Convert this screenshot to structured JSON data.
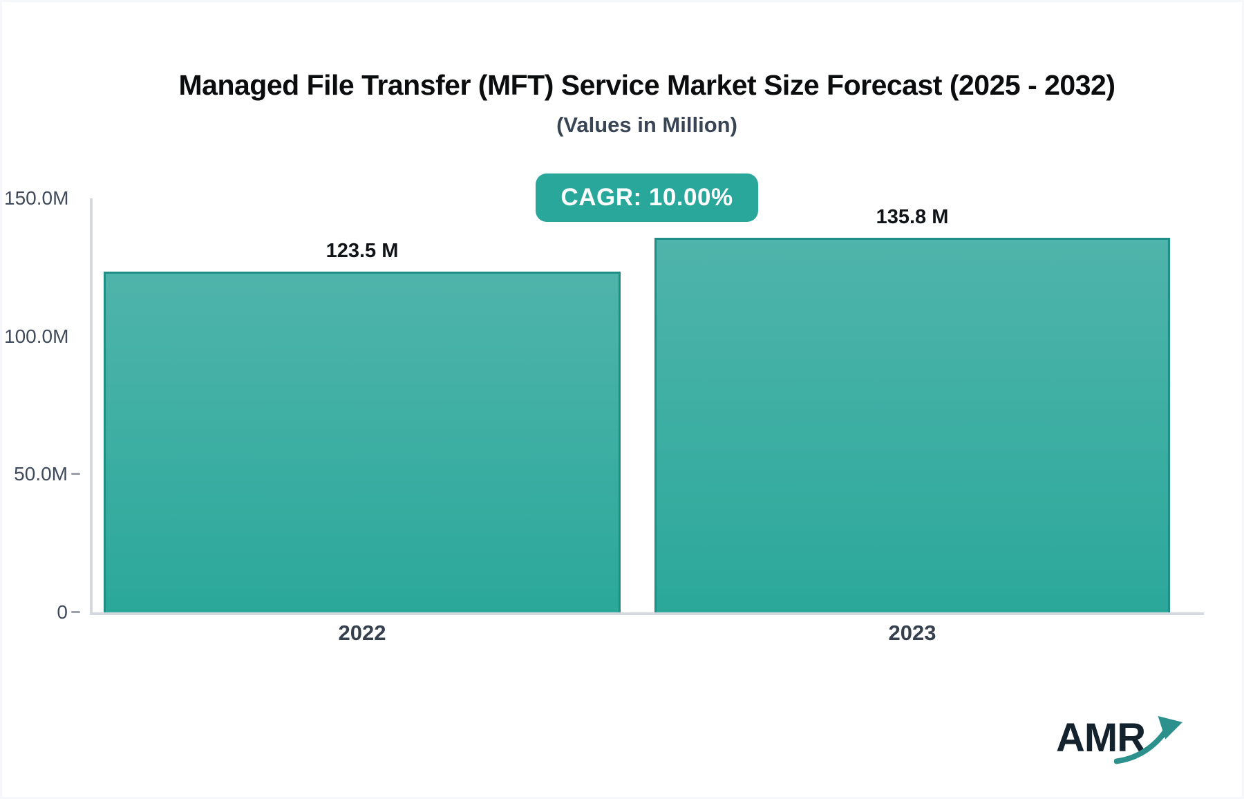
{
  "header": {
    "title": "Managed File Transfer (MFT) Service Market Size Forecast (2025 - 2032)",
    "subtitle": "(Values in Million)",
    "cagr_label": "CAGR: 10.00%"
  },
  "colors": {
    "accent_teal": "#2aa79b",
    "bar_gradient_top": "#4fb4ab",
    "bar_gradient_bottom": "#2ba89a",
    "bar_border": "#1f8e86",
    "axis_line": "#d5d8df",
    "tick_text": "#3f4b5b",
    "value_label_text": "#101418",
    "title_text": "#0b0c0d",
    "badge_text": "#ffffff",
    "logo_text": "#13222c",
    "logo_arrow": "#2c918c"
  },
  "chart_data": {
    "type": "bar",
    "title": "Managed File Transfer (MFT) Service Market Size Forecast (2025 - 2032)",
    "subtitle": "(Values in Million)",
    "cagr_percent": "10.00%",
    "categories": [
      "2022",
      "2023"
    ],
    "values": [
      123.5,
      135.8
    ],
    "value_labels": [
      "123.5 M",
      "135.8 M"
    ],
    "xlabel": "",
    "ylabel": "",
    "ylim": [
      0,
      150
    ],
    "yticks": [
      {
        "value": 150,
        "label": "150.0M",
        "dash": false
      },
      {
        "value": 100,
        "label": "100.0M",
        "dash": false
      },
      {
        "value": 50,
        "label": "50.0M",
        "dash": true
      },
      {
        "value": 0,
        "label": "0",
        "dash": true
      }
    ],
    "grid": false,
    "legend": false
  },
  "logo": {
    "text": "AMR"
  }
}
